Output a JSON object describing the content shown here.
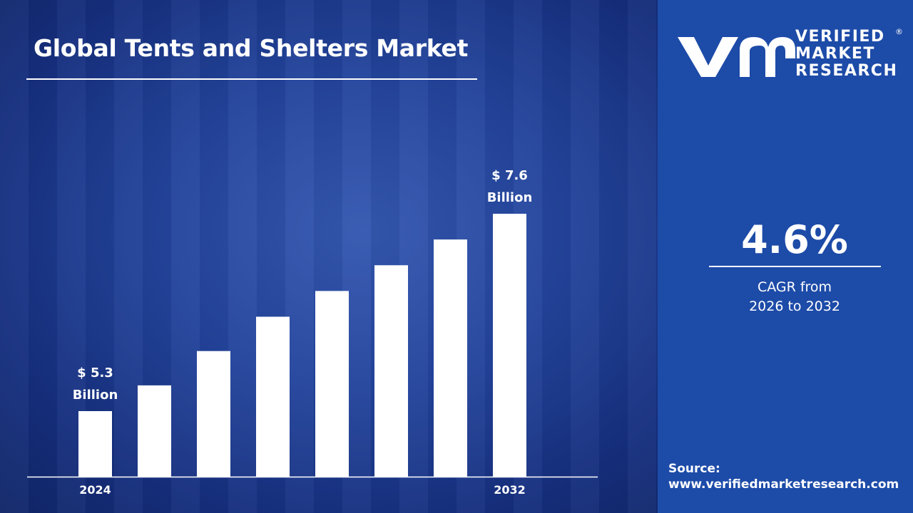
{
  "title": "Global Tents and Shelters Market",
  "brand": {
    "line1": "VERIFIED",
    "line2": "MARKET",
    "line3": "RESEARCH",
    "registered": "®",
    "monogram": "VMR"
  },
  "cagr": {
    "value": "4.6%",
    "label_line1": "CAGR from",
    "label_line2": "2026 to 2032"
  },
  "source": {
    "label": "Source:",
    "url": "www.verifiedmarketresearch.com"
  },
  "colors": {
    "left_panel": "#1a3a8a",
    "right_panel": "#1d4ba8",
    "bars": "#ffffff"
  },
  "chart_data": {
    "type": "bar",
    "categories": [
      "2024",
      "",
      "",
      "",
      "",
      "",
      "",
      "2032"
    ],
    "values": [
      5.3,
      5.6,
      6.0,
      6.4,
      6.7,
      7.0,
      7.3,
      7.6
    ],
    "data_labels": [
      {
        "index": 0,
        "line1": "$ 5.3",
        "line2": "Billion"
      },
      {
        "index": 7,
        "line1": "$ 7.6",
        "line2": "Billion"
      }
    ],
    "title": "Global Tents and Shelters Market",
    "xlabel": "",
    "ylabel": "",
    "grid": false
  }
}
